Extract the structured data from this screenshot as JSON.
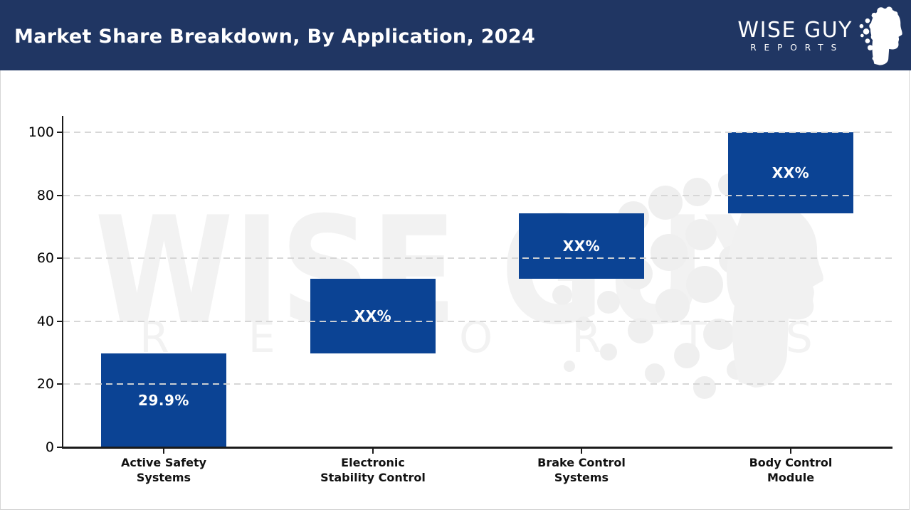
{
  "header": {
    "title": "Market Share Breakdown, By Application, 2024",
    "background": "#203663",
    "logo": {
      "line1": "WISE GUY",
      "line2": "REPORTS"
    }
  },
  "watermark": {
    "line1": "WISE GUY",
    "line2": "R E P O R T S"
  },
  "chart_data": {
    "type": "bar",
    "subtype": "waterfall",
    "title": "Market Share Breakdown, By Application, 2024",
    "categories": [
      {
        "lines": [
          "Active Safety",
          "Systems"
        ]
      },
      {
        "lines": [
          "Electronic",
          "Stability Control"
        ]
      },
      {
        "lines": [
          "Brake Control",
          "Systems"
        ]
      },
      {
        "lines": [
          "Body Control",
          "Module"
        ]
      }
    ],
    "segments": [
      {
        "start": 0,
        "end": 29.9,
        "label": "29.9%"
      },
      {
        "start": 29.9,
        "end": 53.6,
        "label": "XX%"
      },
      {
        "start": 53.6,
        "end": 74.3,
        "label": "XX%"
      },
      {
        "start": 74.3,
        "end": 100,
        "label": "XX%"
      }
    ],
    "xlabel": "",
    "ylabel": "",
    "ylim": [
      0,
      100
    ],
    "yticks": [
      0,
      20,
      40,
      60,
      80,
      100
    ],
    "grid": "horizontal-dashed",
    "legend": "none",
    "bar_color": "#0b4394",
    "bar_label_color": "#ffffff",
    "axis_color": "#1a1a1a",
    "grid_color": "#d5d5d5",
    "watermark_color": "#f2f2f2"
  }
}
